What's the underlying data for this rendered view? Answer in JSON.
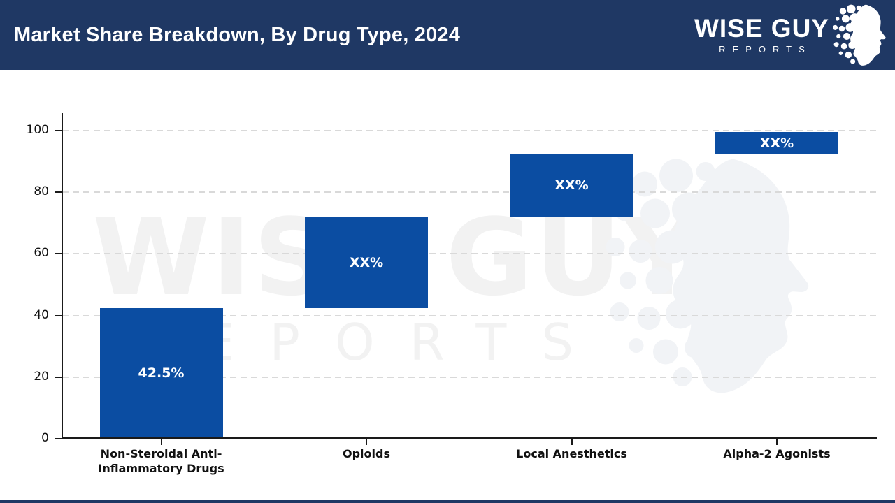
{
  "header": {
    "title": "Market Share Breakdown, By Drug Type, 2024",
    "logo": {
      "line1": "WISE GUY",
      "line2": "REPORTS"
    }
  },
  "watermark": {
    "line1": "WISE GUY",
    "line2": "REPORTS"
  },
  "chart_data": {
    "type": "waterfall",
    "title": "Market Share Breakdown, By Drug Type, 2024",
    "categories": [
      "Non-Steroidal Anti-Inflammatory Drugs",
      "Opioids",
      "Local Anesthetics",
      "Alpha-2 Agonists"
    ],
    "segments": [
      {
        "category": "Non-Steroidal Anti-Inflammatory Drugs",
        "start": 0,
        "end": 42.5,
        "label": "42.5%"
      },
      {
        "category": "Opioids",
        "start": 42.5,
        "end": 72,
        "label": "XX%"
      },
      {
        "category": "Local Anesthetics",
        "start": 72,
        "end": 92.5,
        "label": "XX%"
      },
      {
        "category": "Alpha-2 Agonists",
        "start": 92.5,
        "end": 99.5,
        "label": "XX%"
      }
    ],
    "y_ticks": [
      0,
      20,
      40,
      60,
      80,
      100
    ],
    "ylim": [
      0,
      105
    ],
    "xlabel": "",
    "ylabel": "",
    "grid": "horizontal-dashed",
    "legend": "none",
    "bar_color": "#0b4da2",
    "bar_label_color": "#ffffff",
    "grid_color": "#d9d9d9",
    "axis_color": "#1a1a1a",
    "header_color": "#1f3864",
    "watermark_color": "#f2f2f2"
  }
}
